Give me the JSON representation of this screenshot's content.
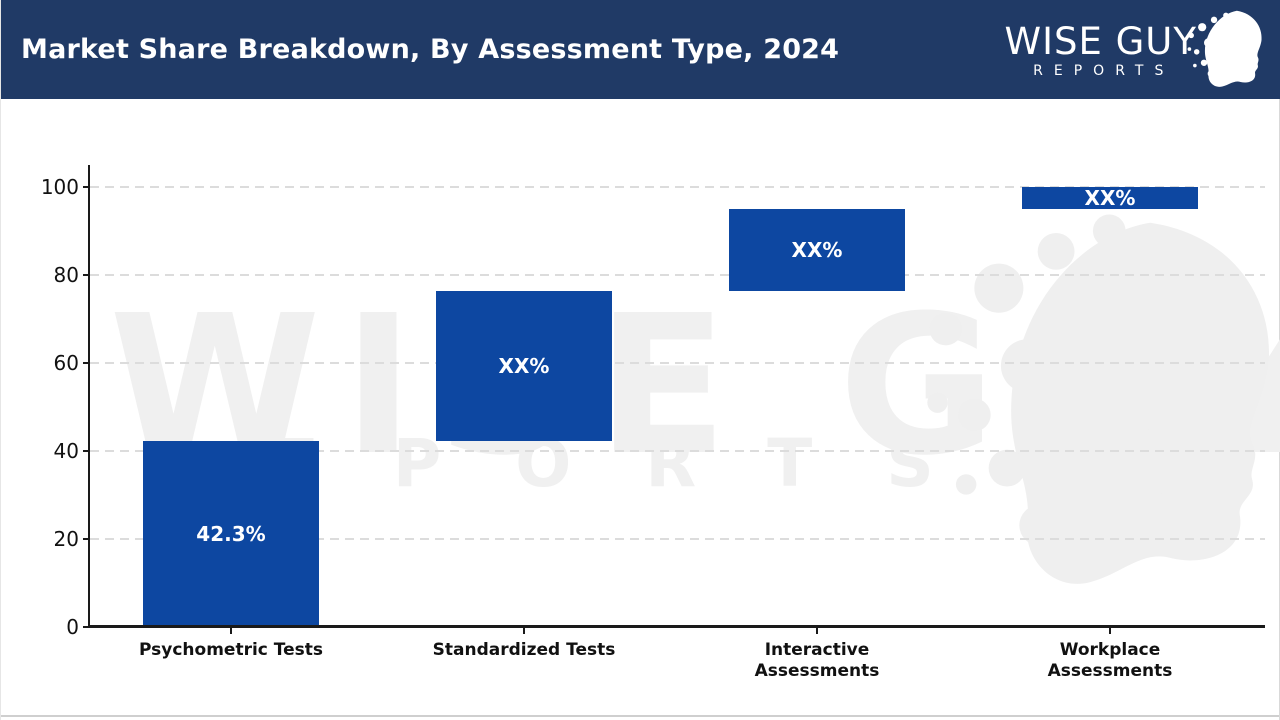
{
  "header": {
    "title": "Market Share Breakdown, By Assessment Type, 2024",
    "logo": {
      "brand_line1": "WISE GUY",
      "brand_line2": "REPORTS"
    }
  },
  "watermark": {
    "text_line1": "WISE GUY",
    "text_line2": "REPORTS"
  },
  "chart_data": {
    "type": "bar",
    "variant": "waterfall",
    "title": "Market Share Breakdown, By Assessment Type, 2024",
    "categories": [
      "Psychometric Tests",
      "Standardized Tests",
      "Interactive Assessments",
      "Workplace Assessments"
    ],
    "category_tick_labels": [
      "Psychometric Tests",
      "Standardized Tests",
      "Interactive\nAssessments",
      "Workplace\nAssessments"
    ],
    "segments": [
      {
        "category": "Psychometric Tests",
        "start": 0,
        "end": 42.3,
        "label": "42.3%"
      },
      {
        "category": "Standardized Tests",
        "start": 42.3,
        "end": 76.3,
        "label": "XX%"
      },
      {
        "category": "Interactive Assessments",
        "start": 76.3,
        "end": 94.9,
        "label": "XX%"
      },
      {
        "category": "Workplace Assessments",
        "start": 94.9,
        "end": 100,
        "label": "XX%"
      }
    ],
    "yticks": [
      0,
      20,
      40,
      60,
      80,
      100
    ],
    "ylim": [
      0,
      105
    ],
    "xlabel": "",
    "ylabel": "",
    "legend": "none",
    "grid": {
      "horizontal": true,
      "style": "dashed",
      "color": "#DCDCDC"
    },
    "bar_color": "#0D47A1",
    "bar_label_color": "#FFFFFF",
    "axis_color": "#1A1A1A"
  },
  "colors": {
    "header_bg": "#203A66",
    "page_bg": "#FFFFFF",
    "watermark": "#F0F0F0"
  }
}
